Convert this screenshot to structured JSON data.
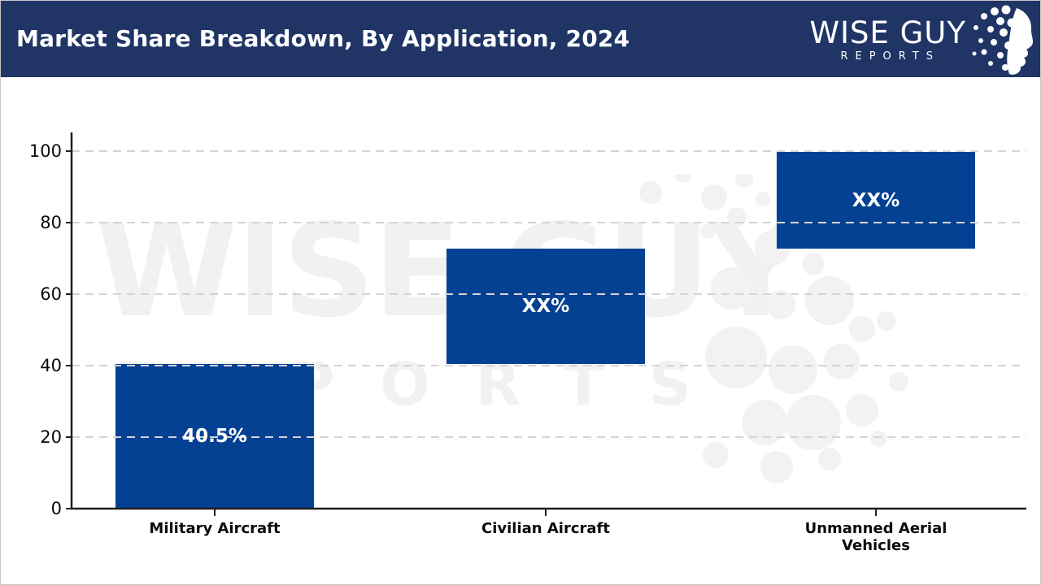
{
  "header": {
    "title": "Market Share Breakdown, By Application, 2024"
  },
  "logo": {
    "line1": "WISE GUY",
    "line2": "REPORTS"
  },
  "watermark": {
    "line1": "WISE GUY",
    "line2": "REPORTS"
  },
  "chart_data": {
    "type": "bar",
    "subtype": "floating-segment (waterfall-style market share)",
    "title": "Market Share Breakdown, By Application, 2024",
    "categories": [
      "Military Aircraft",
      "Civilian Aircraft",
      "Unmanned Aerial Vehicles"
    ],
    "bars": [
      {
        "category": "Military Aircraft",
        "start": 0,
        "end": 40.5,
        "label": "40.5%"
      },
      {
        "category": "Civilian Aircraft",
        "start": 40.5,
        "end": 72.7,
        "label": "XX%"
      },
      {
        "category": "Unmanned Aerial Vehicles",
        "start": 72.7,
        "end": 99.8,
        "label": "XX%"
      }
    ],
    "yticks": [
      0,
      20,
      40,
      60,
      80,
      100
    ],
    "ylim": [
      0,
      105
    ],
    "xlabel": "",
    "ylabel": "",
    "grid": true,
    "gridline_style": "dashed",
    "legend": "none"
  },
  "colors": {
    "header_bg": "#203566",
    "title_text": "#ffffff",
    "bar": "#044193",
    "bar_label": "#ffffff",
    "grid": "#d4d4d4",
    "axis": "#1f1f1f",
    "tick_text": "#0b0b0b",
    "watermark": "#f1f1f2"
  }
}
